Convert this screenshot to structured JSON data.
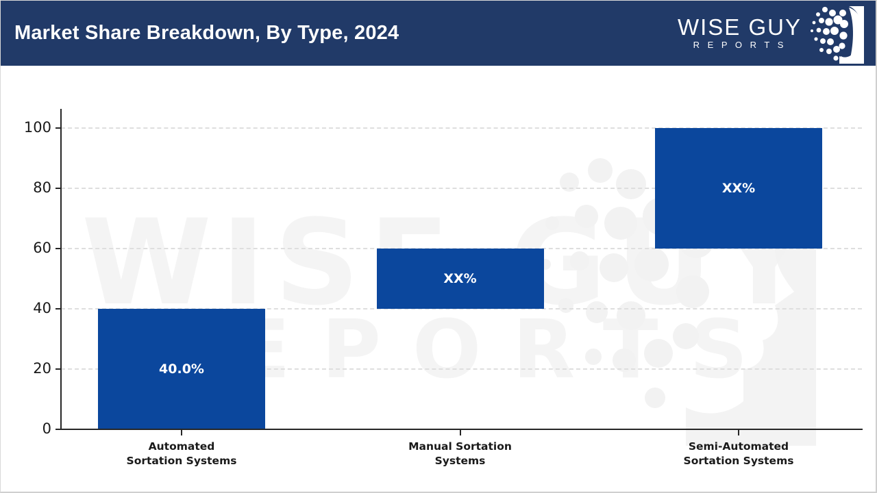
{
  "header": {
    "title": "Market Share Breakdown, By Type, 2024",
    "logo_line1": "WISE GUY",
    "logo_line2": "R E P O R T S"
  },
  "watermark": {
    "line1": "WISE GUY",
    "line2": "REPORTS"
  },
  "colors": {
    "header_bg": "#213A68",
    "bar_fill": "#0B479D",
    "axis": "#262626",
    "gridline": "#DEDEDE",
    "tick_label": "#1A1A1A",
    "value_label": "#FFFFFF",
    "watermark": "#F4F4F4"
  },
  "chart_data": {
    "type": "bar",
    "subtype": "floating-segment-breakdown",
    "title": "Market Share Breakdown, By Type, 2024",
    "categories": [
      [
        "Automated",
        "Sortation Systems"
      ],
      [
        "Manual Sortation",
        "Systems"
      ],
      [
        "Semi-Automated",
        "Sortation Systems"
      ]
    ],
    "bars": [
      {
        "start": 0,
        "end": 40,
        "label": "40.0%"
      },
      {
        "start": 40,
        "end": 60,
        "label": "XX%"
      },
      {
        "start": 60,
        "end": 100,
        "label": "XX%"
      }
    ],
    "y_ticks": [
      0,
      20,
      40,
      60,
      80,
      100
    ],
    "ylim": [
      0,
      106
    ],
    "xlabel": "",
    "ylabel": "",
    "grid": "horizontal-dashed",
    "legend_position": "none"
  }
}
